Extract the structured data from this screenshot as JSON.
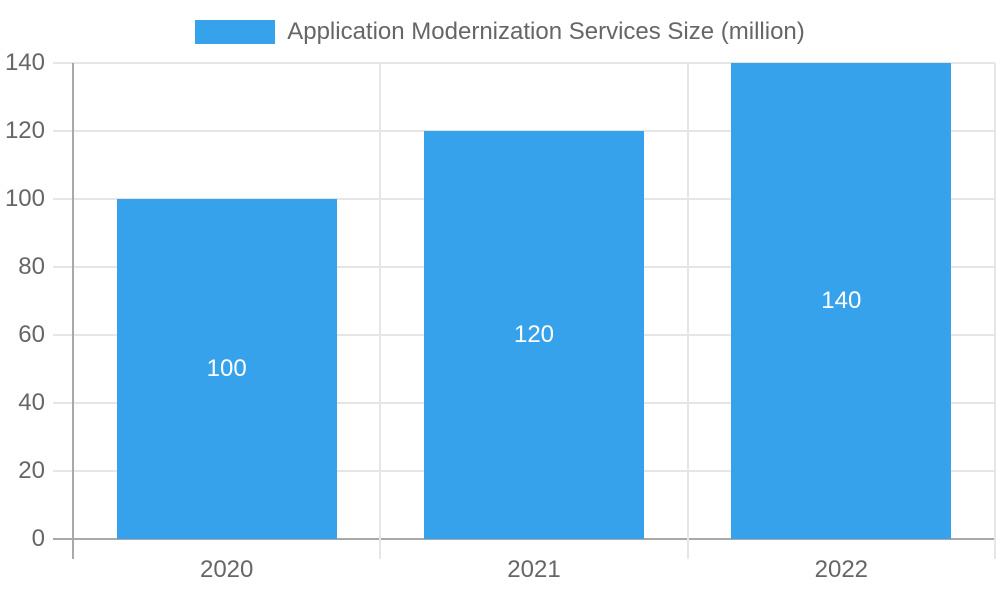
{
  "chart_data": {
    "type": "bar",
    "title": "Application Modernization Services Size (million)",
    "legend": {
      "position": "top",
      "items": [
        {
          "label": "Application Modernization Services Size (million)",
          "color": "#36a2eb"
        }
      ]
    },
    "categories": [
      "2020",
      "2021",
      "2022"
    ],
    "series": [
      {
        "name": "Application Modernization Services Size (million)",
        "values": [
          100,
          120,
          140
        ]
      }
    ],
    "data_labels": [
      "100",
      "120",
      "140"
    ],
    "xlabel": "",
    "ylabel": "",
    "ylim": [
      0,
      140
    ],
    "yticks": [
      0,
      20,
      40,
      60,
      80,
      100,
      120,
      140
    ],
    "grid": "on",
    "colors": {
      "bar": "#36a2eb",
      "data_label": "#ffffff",
      "axis_text": "#666666",
      "gridline": "#e6e6e6",
      "axis_line": "#a9a9a9",
      "background": "#ffffff"
    }
  }
}
